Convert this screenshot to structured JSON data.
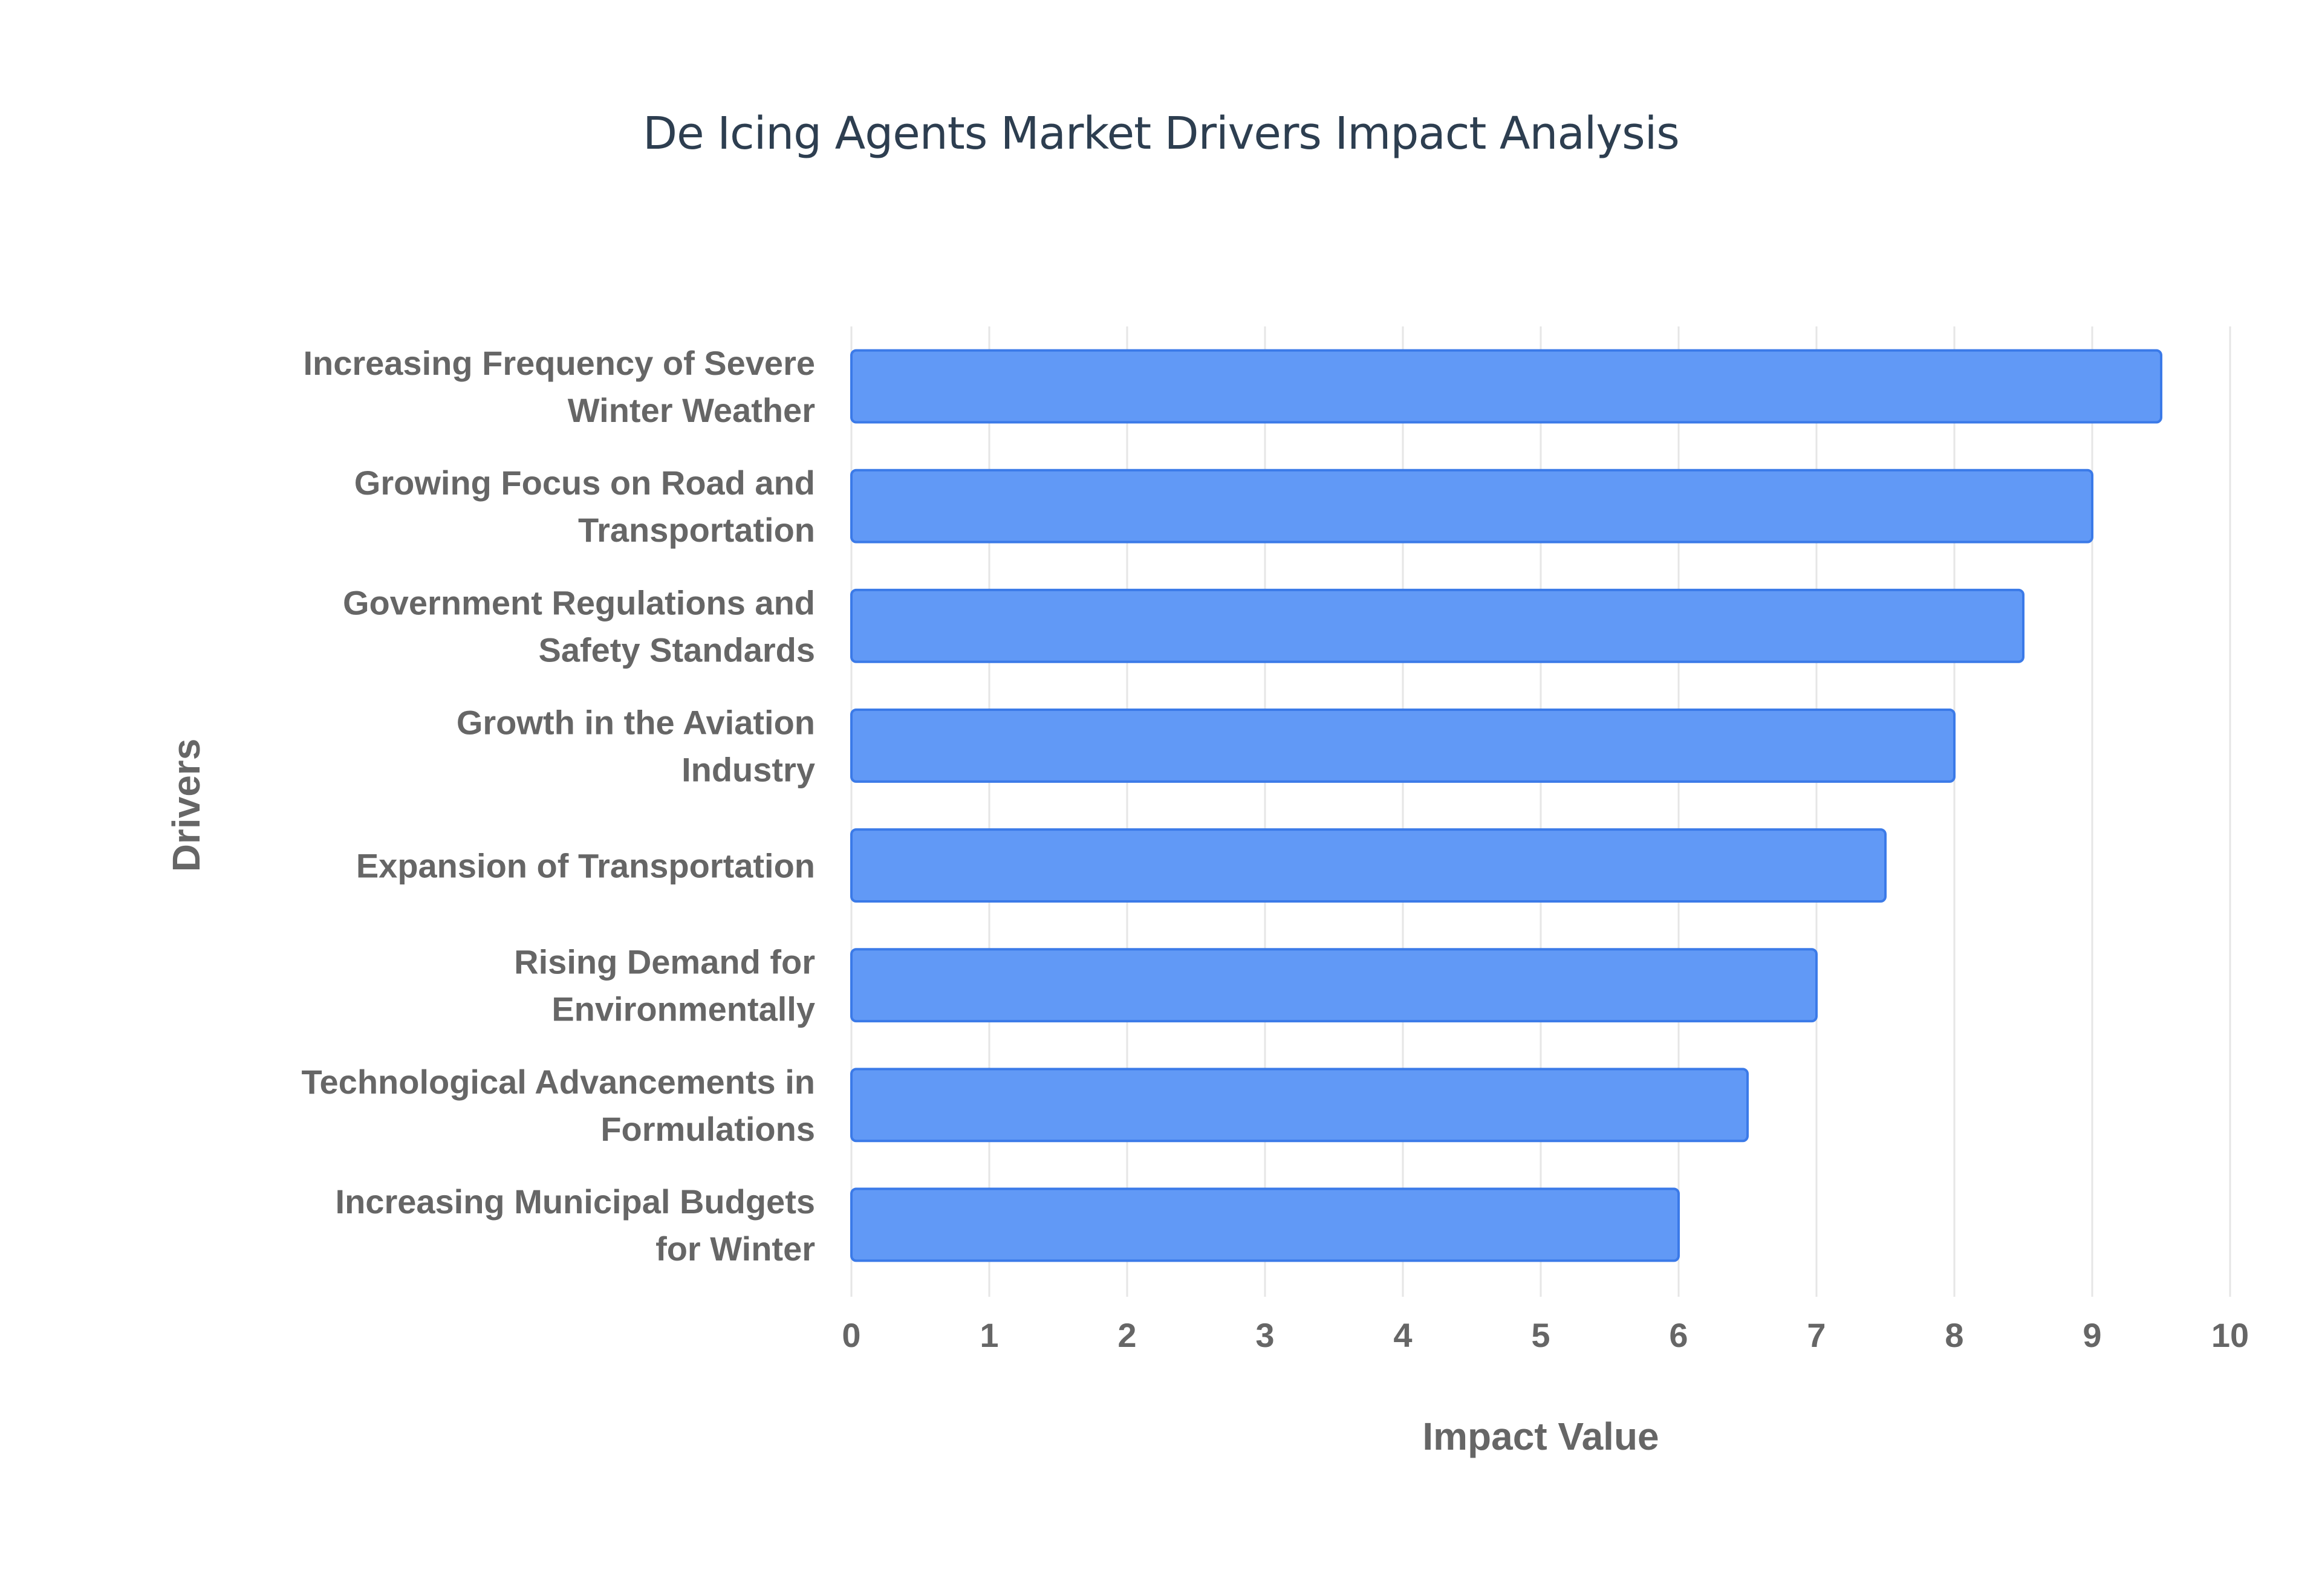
{
  "chart_data": {
    "type": "bar",
    "orientation": "horizontal",
    "title": "De Icing Agents Market Drivers Impact Analysis",
    "xlabel": "Impact Value",
    "ylabel": "Drivers",
    "xlim": [
      0,
      10
    ],
    "x_ticks": [
      "0",
      "1",
      "2",
      "3",
      "4",
      "5",
      "6",
      "7",
      "8",
      "9",
      "10"
    ],
    "grid": true,
    "legend": "none",
    "bar_color": "#6199f6",
    "bar_border_color": "#3b7ae8",
    "categories": [
      [
        "Increasing Frequency of Severe",
        "Winter Weather"
      ],
      [
        "Growing Focus on Road and",
        "Transportation"
      ],
      [
        "Government Regulations and",
        "Safety Standards"
      ],
      [
        "Growth in the Aviation",
        "Industry"
      ],
      [
        "Expansion of Transportation"
      ],
      [
        "Rising Demand for",
        "Environmentally"
      ],
      [
        "Technological Advancements in",
        "Formulations"
      ],
      [
        "Increasing Municipal Budgets",
        "for Winter"
      ]
    ],
    "values": [
      9.5,
      9,
      8.5,
      8,
      7.5,
      7,
      6.5,
      6
    ]
  }
}
